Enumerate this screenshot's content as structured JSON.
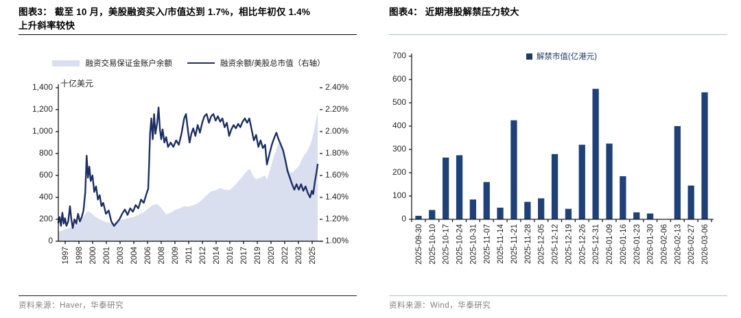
{
  "colors": {
    "line_navy": "#1B2F63",
    "area_fill": "#D9DFEF",
    "bar_navy": "#1F4177",
    "rule_blue": "#A8BFDC",
    "source_gray": "#7F7F7F"
  },
  "figure3": {
    "title_line1": "图表3：  截至 10 月，美股融资买入/市值达到 1.7%，相比年初仅 1.4%",
    "title_line2": "上升斜率较快",
    "unit_label": "十亿美元",
    "legend_area_label": "融资交易保证金账户余额",
    "legend_line_label": "融资余额/美股总市值（右轴）",
    "source": "资料来源：Haver，华泰研究"
  },
  "figure4": {
    "title": "图表4：  近期港股解禁压力较大",
    "legend_label": "解禁市值(亿港元)",
    "source": "资料来源：Wind，华泰研究"
  },
  "chart_data": [
    {
      "type": "area+line",
      "title": "截至10月，美股融资买入/市值达到1.7%，相比年初仅1.4%，上升斜率较快",
      "x_range": [
        1997,
        2026
      ],
      "x_tick_labels": [
        "1997",
        "1998",
        "2000",
        "2001",
        "2003",
        "2004",
        "2006",
        "2008",
        "2009",
        "2011",
        "2012",
        "2014",
        "2016",
        "2017",
        "2019",
        "2020",
        "2022",
        "2023",
        "2025"
      ],
      "left_axis": {
        "label": "十亿美元",
        "min": 0,
        "max": 1400,
        "step": 200,
        "tick_labels": [
          "0",
          "200",
          "400",
          "600",
          "800",
          "1,000",
          "1,200",
          "1,400"
        ]
      },
      "right_axis": {
        "min": 1.0,
        "max": 2.4,
        "step": 0.2,
        "tick_labels": [
          "1.00%",
          "1.20%",
          "1.40%",
          "1.60%",
          "1.80%",
          "2.00%",
          "2.20%",
          "2.40%"
        ]
      },
      "legend_position": "top",
      "grid": false,
      "series": [
        {
          "name": "融资交易保证金账户余额",
          "type": "area",
          "axis": "left",
          "color": "#D9DFEF",
          "points": [
            [
              1997.0,
              85
            ],
            [
              1997.5,
              100
            ],
            [
              1998.0,
              115
            ],
            [
              1998.5,
              130
            ],
            [
              1999.0,
              150
            ],
            [
              1999.5,
              185
            ],
            [
              2000.0,
              250
            ],
            [
              2000.3,
              275
            ],
            [
              2000.7,
              255
            ],
            [
              2001.0,
              230
            ],
            [
              2001.5,
              205
            ],
            [
              2002.0,
              185
            ],
            [
              2002.5,
              170
            ],
            [
              2003.0,
              165
            ],
            [
              2003.5,
              175
            ],
            [
              2004.0,
              195
            ],
            [
              2004.5,
              205
            ],
            [
              2005.0,
              215
            ],
            [
              2005.5,
              225
            ],
            [
              2006.0,
              245
            ],
            [
              2006.5,
              265
            ],
            [
              2007.0,
              300
            ],
            [
              2007.5,
              330
            ],
            [
              2008.0,
              340
            ],
            [
              2008.5,
              300
            ],
            [
              2009.0,
              245
            ],
            [
              2009.5,
              260
            ],
            [
              2010.0,
              285
            ],
            [
              2010.5,
              300
            ],
            [
              2011.0,
              320
            ],
            [
              2011.5,
              315
            ],
            [
              2012.0,
              330
            ],
            [
              2012.5,
              345
            ],
            [
              2013.0,
              380
            ],
            [
              2013.5,
              420
            ],
            [
              2014.0,
              455
            ],
            [
              2014.5,
              465
            ],
            [
              2015.0,
              485
            ],
            [
              2015.5,
              470
            ],
            [
              2016.0,
              465
            ],
            [
              2016.5,
              500
            ],
            [
              2017.0,
              545
            ],
            [
              2017.5,
              590
            ],
            [
              2018.0,
              645
            ],
            [
              2018.3,
              660
            ],
            [
              2018.7,
              590
            ],
            [
              2019.0,
              565
            ],
            [
              2019.5,
              580
            ],
            [
              2020.0,
              600
            ],
            [
              2020.2,
              560
            ],
            [
              2020.5,
              640
            ],
            [
              2021.0,
              780
            ],
            [
              2021.3,
              850
            ],
            [
              2021.6,
              910
            ],
            [
              2021.8,
              900
            ],
            [
              2022.0,
              840
            ],
            [
              2022.3,
              750
            ],
            [
              2022.6,
              660
            ],
            [
              2022.9,
              620
            ],
            [
              2023.2,
              640
            ],
            [
              2023.5,
              665
            ],
            [
              2023.8,
              690
            ],
            [
              2024.0,
              730
            ],
            [
              2024.3,
              780
            ],
            [
              2024.6,
              810
            ],
            [
              2024.9,
              860
            ],
            [
              2025.1,
              900
            ],
            [
              2025.3,
              960
            ],
            [
              2025.5,
              1030
            ],
            [
              2025.7,
              1120
            ],
            [
              2025.85,
              1180
            ]
          ]
        },
        {
          "name": "融资余额/美股总市值（右轴）",
          "type": "line",
          "axis": "right",
          "color": "#1B2F63",
          "points": [
            [
              1997.0,
              1.17
            ],
            [
              1997.15,
              1.22
            ],
            [
              1997.3,
              1.14
            ],
            [
              1997.45,
              1.26
            ],
            [
              1997.6,
              1.16
            ],
            [
              1997.75,
              1.21
            ],
            [
              1997.9,
              1.14
            ],
            [
              1998.1,
              1.18
            ],
            [
              1998.3,
              1.32
            ],
            [
              1998.45,
              1.2
            ],
            [
              1998.6,
              1.12
            ],
            [
              1998.8,
              1.2
            ],
            [
              1999.0,
              1.16
            ],
            [
              1999.2,
              1.25
            ],
            [
              1999.4,
              1.18
            ],
            [
              1999.6,
              1.22
            ],
            [
              1999.8,
              1.28
            ],
            [
              2000.0,
              1.45
            ],
            [
              2000.15,
              1.78
            ],
            [
              2000.3,
              1.58
            ],
            [
              2000.45,
              1.68
            ],
            [
              2000.6,
              1.55
            ],
            [
              2000.8,
              1.6
            ],
            [
              2001.0,
              1.45
            ],
            [
              2001.2,
              1.5
            ],
            [
              2001.4,
              1.38
            ],
            [
              2001.6,
              1.42
            ],
            [
              2001.8,
              1.32
            ],
            [
              2002.0,
              1.35
            ],
            [
              2002.3,
              1.25
            ],
            [
              2002.6,
              1.28
            ],
            [
              2002.9,
              1.18
            ],
            [
              2003.2,
              1.14
            ],
            [
              2003.5,
              1.17
            ],
            [
              2003.8,
              1.2
            ],
            [
              2004.1,
              1.25
            ],
            [
              2004.4,
              1.29
            ],
            [
              2004.7,
              1.24
            ],
            [
              2005.0,
              1.3
            ],
            [
              2005.3,
              1.27
            ],
            [
              2005.6,
              1.33
            ],
            [
              2005.9,
              1.3
            ],
            [
              2006.2,
              1.38
            ],
            [
              2006.5,
              1.35
            ],
            [
              2006.8,
              1.43
            ],
            [
              2007.0,
              1.48
            ],
            [
              2007.1,
              1.7
            ],
            [
              2007.2,
              1.98
            ],
            [
              2007.35,
              2.12
            ],
            [
              2007.5,
              1.93
            ],
            [
              2007.65,
              2.16
            ],
            [
              2007.8,
              1.98
            ],
            [
              2008.0,
              2.08
            ],
            [
              2008.15,
              2.22
            ],
            [
              2008.3,
              2.02
            ],
            [
              2008.45,
              1.93
            ],
            [
              2008.6,
              2.02
            ],
            [
              2008.8,
              1.9
            ],
            [
              2009.0,
              1.95
            ],
            [
              2009.2,
              1.86
            ],
            [
              2009.5,
              1.9
            ],
            [
              2009.8,
              1.86
            ],
            [
              2010.1,
              1.92
            ],
            [
              2010.4,
              1.88
            ],
            [
              2010.7,
              1.98
            ],
            [
              2011.0,
              2.12
            ],
            [
              2011.2,
              2.16
            ],
            [
              2011.4,
              2.02
            ],
            [
              2011.6,
              1.9
            ],
            [
              2011.8,
              1.98
            ],
            [
              2012.0,
              2.03
            ],
            [
              2012.25,
              1.96
            ],
            [
              2012.5,
              2.06
            ],
            [
              2012.75,
              1.99
            ],
            [
              2013.0,
              2.08
            ],
            [
              2013.25,
              2.14
            ],
            [
              2013.5,
              2.16
            ],
            [
              2013.75,
              2.08
            ],
            [
              2014.0,
              2.14
            ],
            [
              2014.25,
              2.16
            ],
            [
              2014.5,
              2.1
            ],
            [
              2014.75,
              2.14
            ],
            [
              2015.0,
              2.09
            ],
            [
              2015.25,
              2.12
            ],
            [
              2015.5,
              2.04
            ],
            [
              2015.75,
              2.08
            ],
            [
              2016.0,
              1.96
            ],
            [
              2016.25,
              2.02
            ],
            [
              2016.5,
              2.06
            ],
            [
              2016.75,
              2.03
            ],
            [
              2017.0,
              2.07
            ],
            [
              2017.25,
              2.04
            ],
            [
              2017.5,
              2.09
            ],
            [
              2017.75,
              2.12
            ],
            [
              2018.0,
              2.08
            ],
            [
              2018.25,
              2.12
            ],
            [
              2018.5,
              2.02
            ],
            [
              2018.75,
              1.92
            ],
            [
              2019.0,
              1.97
            ],
            [
              2019.25,
              1.86
            ],
            [
              2019.5,
              1.92
            ],
            [
              2019.75,
              1.85
            ],
            [
              2020.0,
              1.88
            ],
            [
              2020.2,
              1.7
            ],
            [
              2020.5,
              1.8
            ],
            [
              2020.75,
              1.88
            ],
            [
              2021.0,
              1.94
            ],
            [
              2021.25,
              1.99
            ],
            [
              2021.5,
              1.93
            ],
            [
              2021.75,
              1.88
            ],
            [
              2022.0,
              1.83
            ],
            [
              2022.25,
              1.74
            ],
            [
              2022.5,
              1.64
            ],
            [
              2022.75,
              1.58
            ],
            [
              2023.0,
              1.52
            ],
            [
              2023.25,
              1.47
            ],
            [
              2023.5,
              1.52
            ],
            [
              2023.75,
              1.47
            ],
            [
              2024.0,
              1.52
            ],
            [
              2024.25,
              1.46
            ],
            [
              2024.5,
              1.5
            ],
            [
              2024.75,
              1.44
            ],
            [
              2025.0,
              1.4
            ],
            [
              2025.2,
              1.46
            ],
            [
              2025.35,
              1.43
            ],
            [
              2025.55,
              1.55
            ],
            [
              2025.7,
              1.62
            ],
            [
              2025.85,
              1.7
            ]
          ]
        }
      ]
    },
    {
      "type": "bar",
      "title": "近期港股解禁压力较大",
      "legend": "解禁市值(亿港元)",
      "bar_color": "#1F4177",
      "ylim": [
        0,
        700
      ],
      "ystep": 100,
      "y_tick_labels": [
        "0",
        "100",
        "200",
        "300",
        "400",
        "500",
        "600",
        "700"
      ],
      "grid": false,
      "categories": [
        "2025-09-30",
        "2025-10-10",
        "2025-10-17",
        "2025-10-24",
        "2025-10-31",
        "2025-11-07",
        "2025-11-14",
        "2025-11-21",
        "2025-11-28",
        "2025-12-05",
        "2025-12-12",
        "2025-12-19",
        "2025-12-26",
        "2025-12-31",
        "2026-01-09",
        "2026-01-16",
        "2026-01-23",
        "2026-01-30",
        "2026-02-06",
        "2026-02-13",
        "2026-02-27",
        "2026-03-06"
      ],
      "values": [
        15,
        40,
        265,
        275,
        85,
        160,
        50,
        425,
        75,
        90,
        280,
        45,
        320,
        560,
        325,
        185,
        30,
        25,
        0,
        400,
        145,
        545
      ]
    }
  ]
}
